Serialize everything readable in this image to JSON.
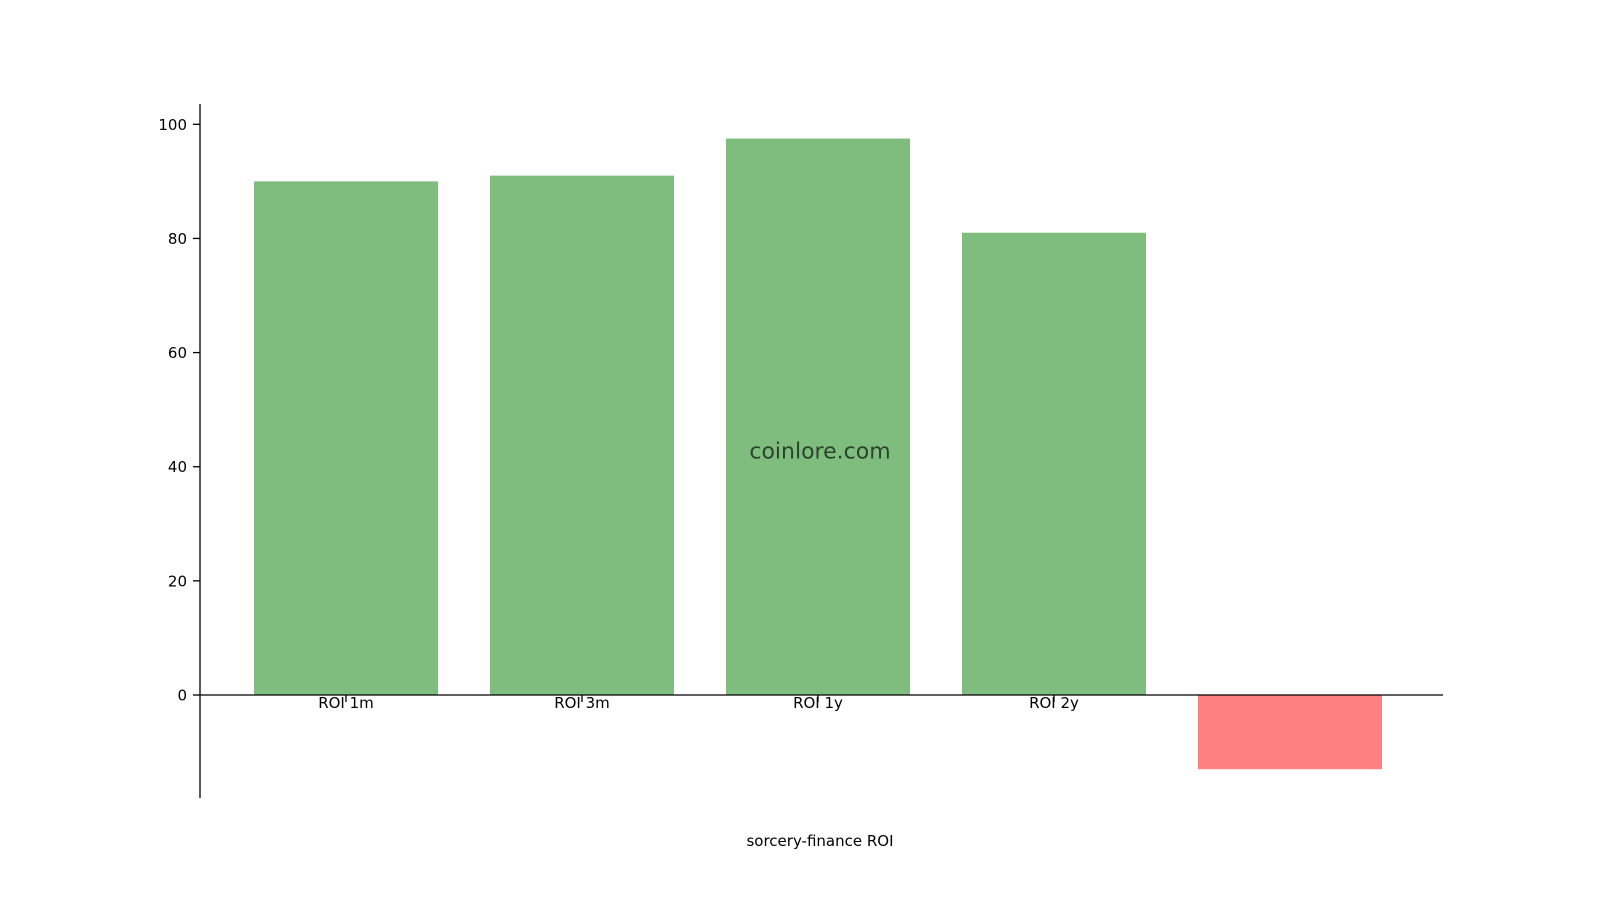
{
  "page": {
    "background_color": "#ffffff"
  },
  "watermark": {
    "text": "coinlore.com",
    "color": "#333333"
  },
  "chart_data": {
    "type": "bar",
    "title": "",
    "xlabel": "sorcery-finance ROI",
    "ylabel": "",
    "categories": [
      "ROI 1m",
      "ROI 3m",
      "ROI 1y",
      "ROI 2y",
      ""
    ],
    "values": [
      90,
      91,
      97.5,
      81,
      -13
    ],
    "bar_colors": [
      "#7EBD7E",
      "#7EBD7E",
      "#7EBD7E",
      "#7EBD7E",
      "#FF8080"
    ],
    "positive_color": "#7EBD7E",
    "negative_color": "#FF8080",
    "y_ticks": [
      0,
      20,
      40,
      60,
      80,
      100
    ],
    "ylim": [
      -18,
      103.5
    ],
    "grid": false,
    "legend": null,
    "axis_color": "#000000",
    "zero_baseline": true
  }
}
